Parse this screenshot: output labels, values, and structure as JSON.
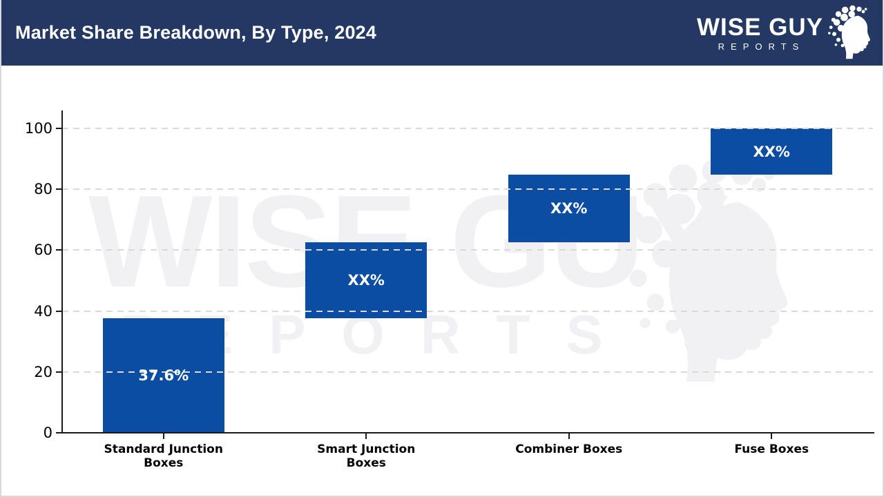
{
  "header": {
    "title": "Market Share Breakdown, By Type, 2024",
    "logo": {
      "wordmark": "WISE GUY",
      "subtext": "REPORTS"
    }
  },
  "watermark": {
    "wordmark": "WISE GUY",
    "subtext": "REPORTS"
  },
  "chart_data": {
    "type": "bar",
    "variant": "waterfall",
    "title": "Market Share Breakdown, By Type, 2024",
    "categories": [
      "Standard Junction Boxes",
      "Smart Junction Boxes",
      "Combiner Boxes",
      "Fuse Boxes"
    ],
    "tick_labels": [
      "Standard Junction\nBoxes",
      "Smart Junction\nBoxes",
      "Combiner Boxes",
      "Fuse Boxes"
    ],
    "series": [
      {
        "name": "Market share (%)",
        "values": [
          37.6,
          25.0,
          22.2,
          15.2
        ],
        "starts": [
          0,
          37.6,
          62.6,
          84.8
        ],
        "ends": [
          37.6,
          62.6,
          84.8,
          100
        ],
        "bar_labels": [
          "37.6%",
          "XX%",
          "XX%",
          "XX%"
        ]
      }
    ],
    "xlabel": "",
    "ylabel": "",
    "ylim": [
      0,
      100
    ],
    "yticks": [
      0,
      20,
      40,
      60,
      80,
      100
    ],
    "grid": true,
    "grid_style": "dashed-horizontal",
    "legend": false,
    "bar_color": "#0b4da2",
    "bar_label_color": "#ffffff",
    "axis_color": "#1a1a1a",
    "header_color": "#233862",
    "watermark_color": "#f1f1f4"
  }
}
